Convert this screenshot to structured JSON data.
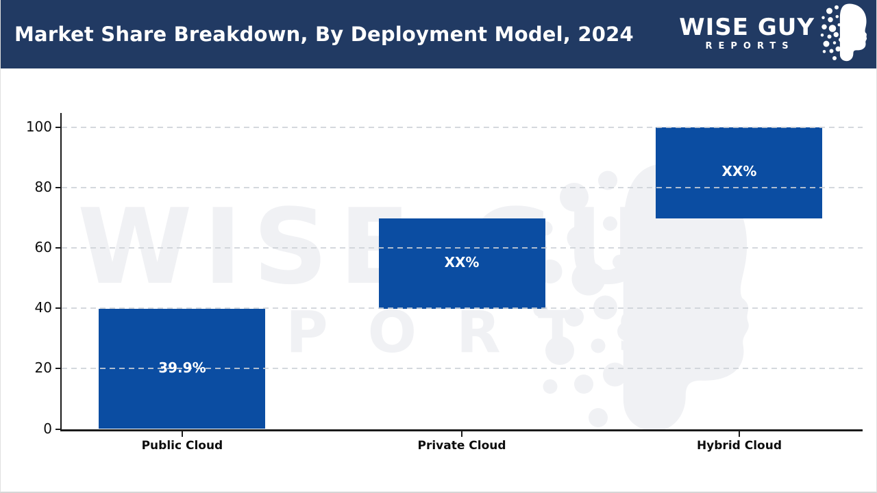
{
  "header": {
    "title": "Market Share Breakdown, By Deployment Model, 2024",
    "logo": {
      "line1": "WISE GUY",
      "line2": "REPORTS"
    }
  },
  "watermark": {
    "line1": "WISE GUY",
    "line2": "REPORTS"
  },
  "chart_data": {
    "type": "bar",
    "subtype": "floating-segmented-bars",
    "title": "Market Share Breakdown, By Deployment Model, 2024",
    "categories": [
      "Public Cloud",
      "Private Cloud",
      "Hybrid Cloud"
    ],
    "bars": [
      {
        "category": "Public Cloud",
        "start": 0,
        "end": 39.9,
        "label": "39.9%"
      },
      {
        "category": "Private Cloud",
        "start": 39.9,
        "end": 69.8,
        "label": "XX%"
      },
      {
        "category": "Hybrid Cloud",
        "start": 69.8,
        "end": 100,
        "label": "XX%"
      }
    ],
    "yticks": [
      0,
      20,
      40,
      60,
      80,
      100
    ],
    "ylim": [
      0,
      104.8
    ],
    "xlabel": "",
    "ylabel": "",
    "grid": "dashed-horizontal",
    "legend": "none",
    "colors": {
      "bar": "#0B4DA2",
      "header_bg": "#213A63",
      "watermark": "#F0F1F4",
      "grid": "#D8DBDF",
      "axis": "#1A1A1A",
      "bar_label": "#FFFFFF"
    }
  }
}
